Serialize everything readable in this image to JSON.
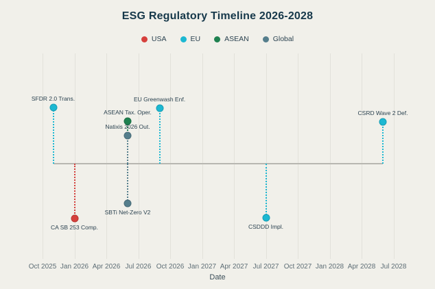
{
  "title": "ESG Regulatory Timeline 2026-2028",
  "colors": {
    "USA": "#d6403c",
    "EU": "#1cb8d2",
    "ASEAN": "#1f8150",
    "Global": "#557e8c",
    "background": "#f1f0ea",
    "baseline": "#b8b7b1",
    "gridline": "#e2e1da",
    "title_text": "#16384a",
    "label_text": "#2b4250",
    "tick_text": "#5d6d75"
  },
  "legend": {
    "items": [
      {
        "label": "USA"
      },
      {
        "label": "EU"
      },
      {
        "label": "ASEAN"
      },
      {
        "label": "Global"
      }
    ]
  },
  "chart_data": {
    "type": "scatter",
    "subtype": "event-timeline",
    "title": "ESG Regulatory Timeline 2026-2028",
    "xlabel": "Date",
    "x_tick_labels": [
      "Oct 2025",
      "Jan 2026",
      "Apr 2026",
      "Jul 2026",
      "Oct 2026",
      "Jan 2027",
      "Apr 2027",
      "Jul 2027",
      "Oct 2027",
      "Jan 2028",
      "Apr 2028",
      "Jul 2028"
    ],
    "x_start_month": "2025-10",
    "grid": true,
    "legend_position": "top-center",
    "legend_entries": [
      "USA",
      "EU",
      "ASEAN",
      "Global"
    ],
    "events": [
      {
        "label": "SFDR 2.0 Trans.",
        "category": "EU",
        "date": "2025-11",
        "offset": -82
      },
      {
        "label": "CA SB 253 Comp.",
        "category": "USA",
        "date": "2026-01",
        "offset": 80
      },
      {
        "label": "ASEAN Tax. Oper.",
        "category": "ASEAN",
        "date": "2026-06",
        "offset": -62
      },
      {
        "label": "Natixis 2026 Out.",
        "category": "Global",
        "date": "2026-06",
        "offset": -41
      },
      {
        "label": "SBTi Net-Zero V2",
        "category": "Global",
        "date": "2026-06",
        "offset": 58
      },
      {
        "label": "EU Greenwash Enf.",
        "category": "EU",
        "date": "2026-09",
        "offset": -81
      },
      {
        "label": "CSDDD Impl.",
        "category": "EU",
        "date": "2027-07",
        "offset": 79
      },
      {
        "label": "CSRD Wave 2 Def.",
        "category": "EU",
        "date": "2028-06",
        "offset": -61
      }
    ]
  }
}
